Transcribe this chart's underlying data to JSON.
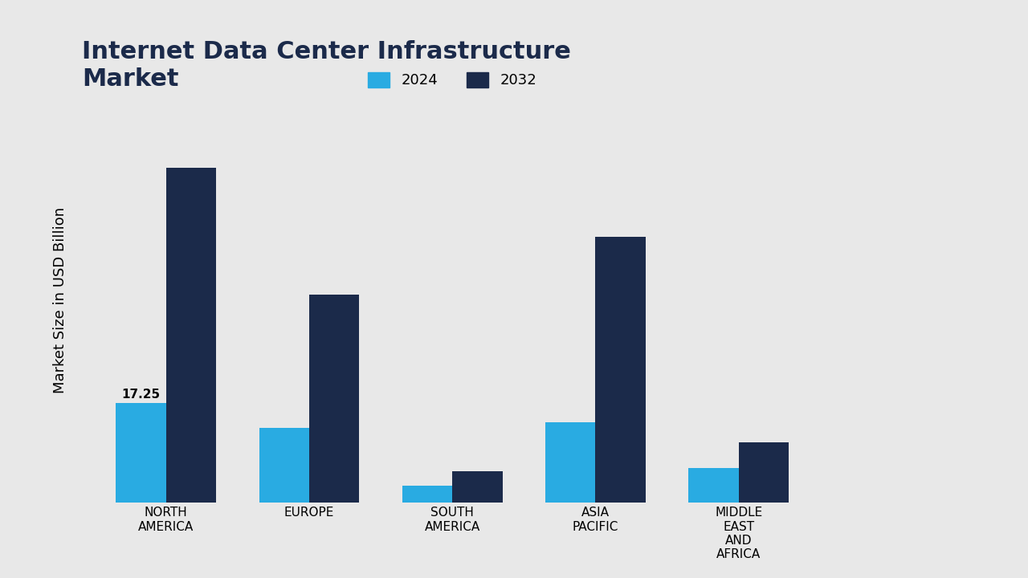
{
  "title": "Internet Data Center Infrastructure\nMarket",
  "ylabel": "Market Size in USD Billion",
  "categories": [
    "NORTH\nAMERICA",
    "EUROPE",
    "SOUTH\nAMERICA",
    "ASIA\nPACIFIC",
    "MIDDLE\nEAST\nAND\nAFRICA"
  ],
  "values_2024": [
    17.25,
    13.0,
    3.0,
    14.0,
    6.0
  ],
  "values_2032": [
    58.0,
    36.0,
    5.5,
    46.0,
    10.5
  ],
  "color_2024": "#29ABE2",
  "color_2032": "#1B2A4A",
  "annotation_label": "17.25",
  "annotation_region_idx": 0,
  "background_color": "#E8E8E8",
  "title_color": "#1B2A4A",
  "title_fontsize": 22,
  "ylabel_fontsize": 13,
  "legend_fontsize": 13,
  "tick_fontsize": 11,
  "bar_width": 0.35,
  "ylim": [
    0,
    70
  ],
  "right_panel_color": "#1B2A4A"
}
